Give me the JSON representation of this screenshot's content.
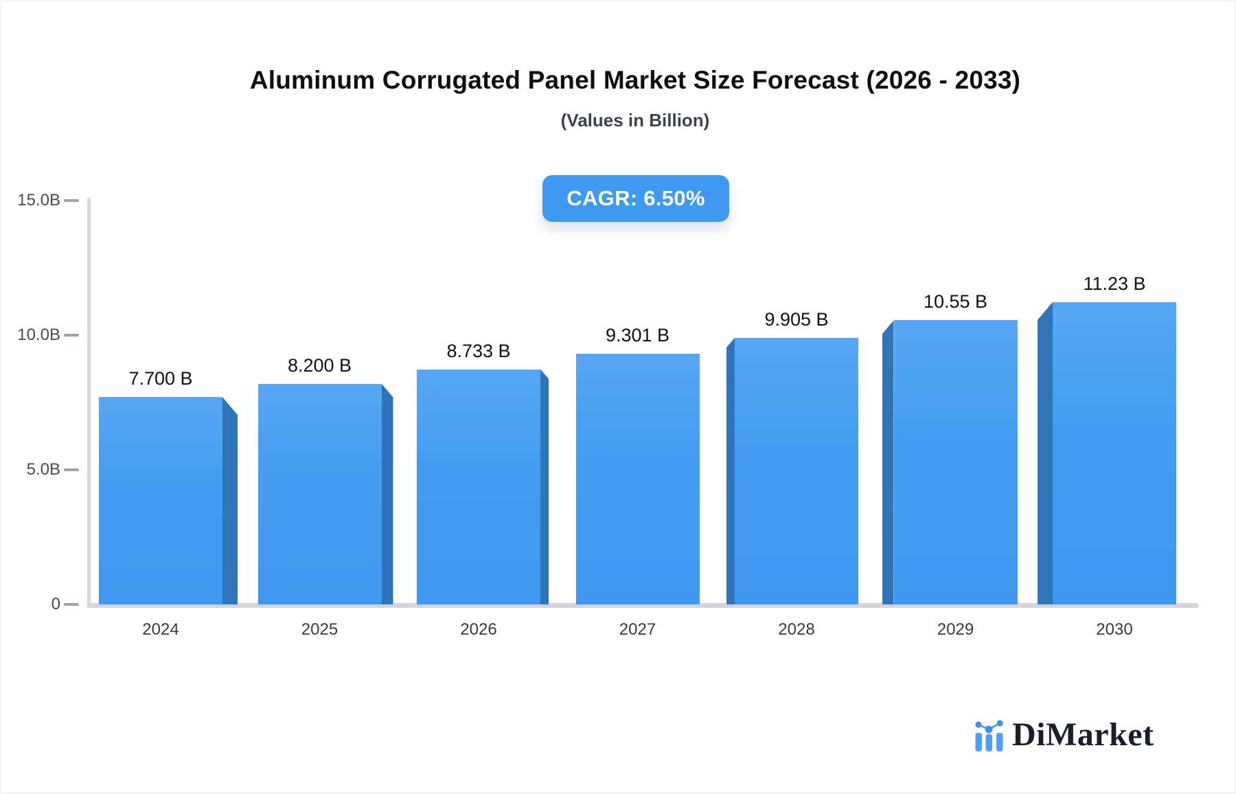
{
  "header": {
    "title": "Aluminum Corrugated Panel Market Size Forecast (2026 - 2033)",
    "subtitle": "(Values in Billion)",
    "cagr_label": "CAGR: 6.50%"
  },
  "chart_data": {
    "type": "bar",
    "title": "Aluminum Corrugated Panel Market Size Forecast (2026 - 2033)",
    "subtitle": "(Values in Billion)",
    "categories": [
      "2024",
      "2025",
      "2026",
      "2027",
      "2028",
      "2029",
      "2030"
    ],
    "values": [
      7.7,
      8.2,
      8.733,
      9.301,
      9.905,
      10.55,
      11.23
    ],
    "value_labels": [
      "7.700 B",
      "8.200 B",
      "8.733 B",
      "9.301 B",
      "9.905 B",
      "10.55 B",
      "11.23 B"
    ],
    "unit": "Billion",
    "ylim": [
      0,
      15
    ],
    "yticks": [
      {
        "value": 15,
        "label": "15.0B"
      },
      {
        "value": 10,
        "label": "10.0B"
      },
      {
        "value": 5,
        "label": "5.0B"
      },
      {
        "value": 0,
        "label": "0"
      }
    ],
    "grid": false,
    "legend": false,
    "bar_style": "3d-perspective",
    "colors": {
      "bar_face_top": "#57a7f3",
      "bar_face_bottom": "#3f97ef",
      "bar_side": "#2e74b8",
      "axis": "#d6dade",
      "tick": "#9aa4ae"
    }
  },
  "badge": {
    "color": "#3e9af1"
  },
  "footer": {
    "brand": "DiMarket",
    "logo_icon": "bar-chart-with-dots-icon",
    "logo_color": "#4da0f4"
  }
}
